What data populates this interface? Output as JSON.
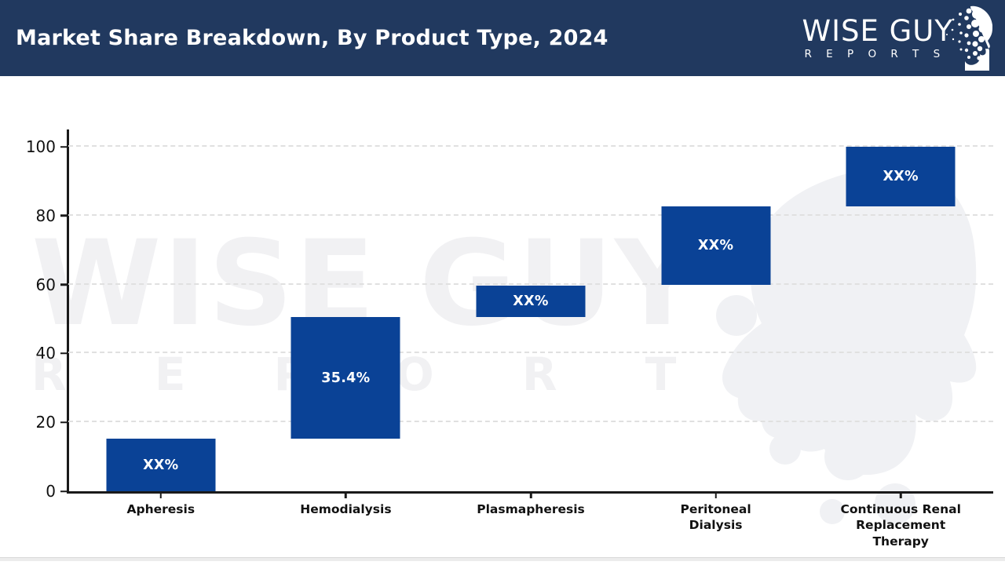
{
  "header": {
    "title": "Market Share Breakdown, By Product Type, 2024",
    "logo": {
      "line1": "WISE GUY",
      "line2": "R E P O R T S"
    }
  },
  "watermark": {
    "line1": "WISE GUY",
    "line2": "R E P O R T S"
  },
  "chart_data": {
    "type": "bar",
    "subtype": "waterfall",
    "title": "Market Share Breakdown, By Product Type, 2024",
    "categories": [
      "Apheresis",
      "Hemodialysis",
      "Plasmapheresis",
      "Peritoneal Dialysis",
      "Continuous Renal Replacement Therapy"
    ],
    "bars": [
      {
        "category": "Apheresis",
        "start": 0,
        "end": 15.2,
        "value": 15.2,
        "label": "XX%"
      },
      {
        "category": "Hemodialysis",
        "start": 15.2,
        "end": 50.6,
        "value": 35.4,
        "label": "35.4%"
      },
      {
        "category": "Plasmapheresis",
        "start": 50.6,
        "end": 59.8,
        "value": 9.2,
        "label": "XX%"
      },
      {
        "category": "Peritoneal Dialysis",
        "start": 59.8,
        "end": 82.8,
        "value": 23.0,
        "label": "XX%"
      },
      {
        "category": "Continuous Renal Replacement Therapy",
        "start": 82.8,
        "end": 100,
        "value": 17.2,
        "label": "XX%"
      }
    ],
    "xlabel": "",
    "ylabel": "",
    "ylim": [
      0,
      100
    ],
    "yticks": [
      0,
      20,
      40,
      60,
      80,
      100
    ],
    "grid": "horizontal-dashed",
    "legend": "none",
    "bar_color": "#0a4296",
    "bar_label_color": "#ffffff"
  },
  "colors": {
    "header_bg": "#21395f",
    "header_text": "#ffffff",
    "axis": "#1a1a1a",
    "gridline": "#e0e0e0",
    "watermark": "#f1f1f3",
    "footer_strip": "#ececec"
  }
}
